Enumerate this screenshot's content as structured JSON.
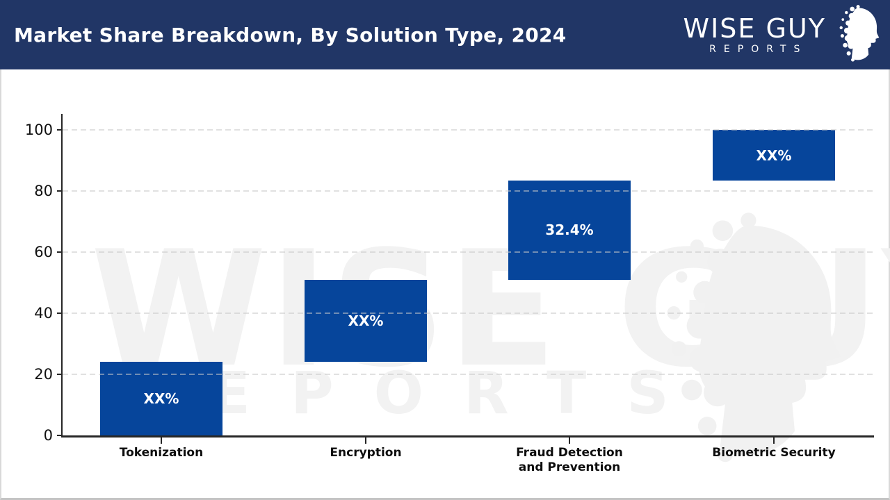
{
  "header": {
    "title": "Market Share Breakdown, By Solution Type, 2024",
    "logo": {
      "wordmark": "WISE GUY",
      "subtext": "REPORTS"
    }
  },
  "watermark": {
    "wordmark": "WISE GUY",
    "subtext": "REPORTS"
  },
  "chart_data": {
    "type": "bar",
    "variant": "waterfall",
    "title": "Market Share Breakdown, By Solution Type, 2024",
    "categories": [
      "Tokenization",
      "Encryption",
      "Fraud Detection\nand Prevention",
      "Biometric Security"
    ],
    "series": [
      {
        "name": "Market share (%)",
        "segments": [
          {
            "category": "Tokenization",
            "start": 0,
            "end": 24,
            "label": "XX%"
          },
          {
            "category": "Encryption",
            "start": 24,
            "end": 51,
            "label": "XX%"
          },
          {
            "category": "Fraud Detection and Prevention",
            "start": 51,
            "end": 83.4,
            "label": "32.4%"
          },
          {
            "category": "Biometric Security",
            "start": 83.4,
            "end": 100,
            "label": "XX%"
          }
        ]
      }
    ],
    "ylim": [
      0,
      100
    ],
    "yticks": [
      0,
      20,
      40,
      60,
      80,
      100
    ],
    "xlabel": "",
    "ylabel": "",
    "grid": "horizontal-dashed",
    "legend": "none",
    "bar_color": "#06459b",
    "bar_label_color": "#ffffff"
  }
}
